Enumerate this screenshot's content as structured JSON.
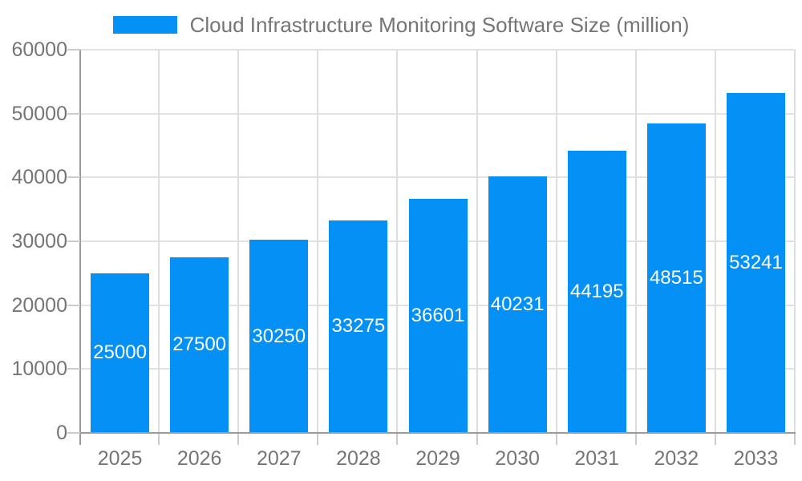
{
  "chart_data": {
    "type": "bar",
    "title": "Cloud Infrastructure Monitoring Software Size (million)",
    "categories": [
      "2025",
      "2026",
      "2027",
      "2028",
      "2029",
      "2030",
      "2031",
      "2032",
      "2033"
    ],
    "values": [
      25000,
      27500,
      30250,
      33275,
      36601,
      40231,
      44195,
      48515,
      53241
    ],
    "series": [
      {
        "name": "Cloud Infrastructure Monitoring Software Size (million)",
        "values": [
          25000,
          27500,
          30250,
          33275,
          36601,
          40231,
          44195,
          48515,
          53241
        ]
      }
    ],
    "xlabel": "",
    "ylabel": "",
    "ylim": [
      0,
      60000
    ],
    "yticks": [
      0,
      10000,
      20000,
      30000,
      40000,
      50000,
      60000
    ],
    "grid": true,
    "legend_position": "top",
    "value_labels": "inside-center",
    "colors": {
      "bar": "#0590f5",
      "value_label": "#ffffff",
      "axis_label": "#757575",
      "axis_line": "#9b9b9b",
      "gridline": "#e2e2e2",
      "background": "#ffffff"
    }
  }
}
